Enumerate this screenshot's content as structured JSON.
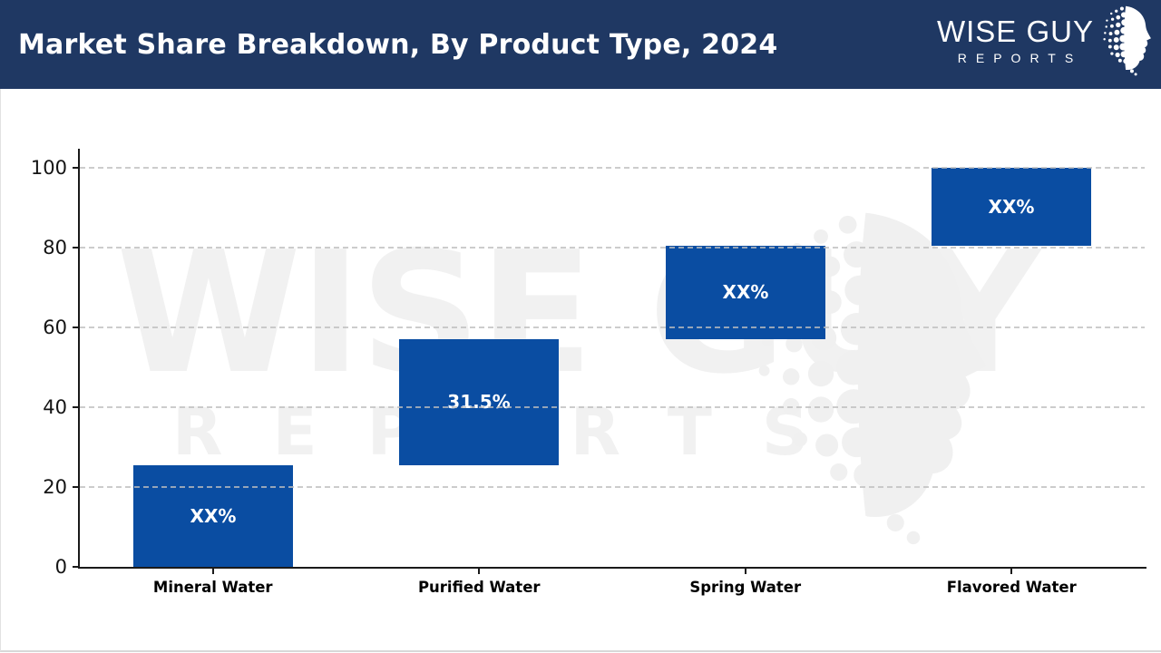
{
  "header": {
    "title": "Market Share Breakdown, By Product Type, 2024",
    "brand": {
      "line1": "WISE GUY",
      "line2": "REPORTS"
    }
  },
  "watermark": {
    "line1": "WISE GUY",
    "line2": "REPORTS"
  },
  "chart_data": {
    "type": "bar",
    "subtype": "floating-waterfall",
    "title": "Market Share Breakdown, By Product Type, 2024",
    "categories": [
      "Mineral Water",
      "Purified Water",
      "Spring Water",
      "Flavored Water"
    ],
    "segments": [
      {
        "category": "Mineral Water",
        "start": 0,
        "end": 25.5,
        "value": 25.5,
        "label": "XX%"
      },
      {
        "category": "Purified Water",
        "start": 25.5,
        "end": 57,
        "value": 31.5,
        "label": "31.5%"
      },
      {
        "category": "Spring Water",
        "start": 57,
        "end": 80.5,
        "value": 23.5,
        "label": "XX%"
      },
      {
        "category": "Flavored Water",
        "start": 80.5,
        "end": 100,
        "value": 19.5,
        "label": "XX%"
      }
    ],
    "yticks": [
      0,
      20,
      40,
      60,
      80,
      100
    ],
    "ylim": [
      0,
      105
    ],
    "xlabel": "",
    "ylabel": "",
    "grid": "horizontal-dashed",
    "legend": "none",
    "bar_color": "#0A4DA2",
    "bar_label_color": "#ffffff"
  },
  "colors": {
    "header_bg": "#1F3863",
    "bar": "#0A4DA2",
    "watermark": "#f1f1f1",
    "axis": "#1a1a1a",
    "gridline": "#d9d9d9"
  }
}
